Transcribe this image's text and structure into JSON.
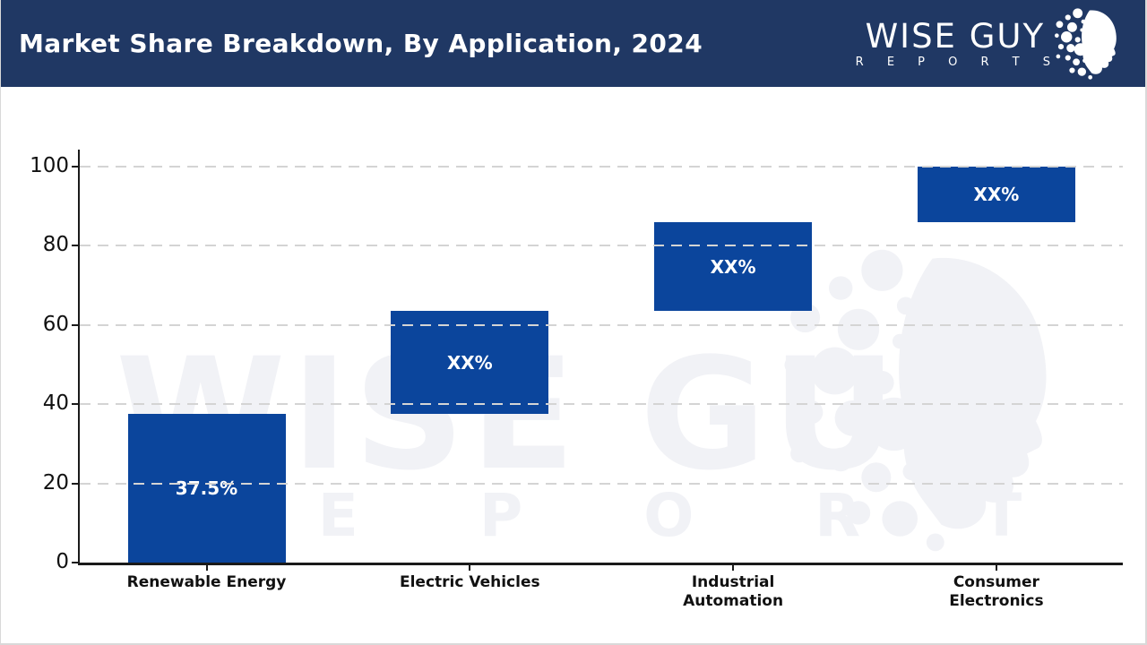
{
  "header": {
    "title": "Market Share Breakdown, By Application, 2024",
    "logo": {
      "name": "WISE GUY",
      "sub": "R E P O R T S"
    }
  },
  "watermark": {
    "line1": "WISE GUY",
    "line2": "R E P O R T S"
  },
  "chart_data": {
    "type": "bar",
    "subtype": "floating-waterfall",
    "title": "Market Share Breakdown, By Application, 2024",
    "categories": [
      "Renewable Energy",
      "Electric Vehicles",
      "Industrial Automation",
      "Consumer Electronics"
    ],
    "category_lines": [
      [
        "Renewable Energy"
      ],
      [
        "Electric Vehicles"
      ],
      [
        "Industrial",
        "Automation"
      ],
      [
        "Consumer",
        "Electronics"
      ]
    ],
    "segments": [
      {
        "category": "Renewable Energy",
        "from": 0,
        "to": 37.5,
        "label": "37.5%"
      },
      {
        "category": "Electric Vehicles",
        "from": 37.5,
        "to": 63.5,
        "label": "XX%"
      },
      {
        "category": "Industrial Automation",
        "from": 63.5,
        "to": 86,
        "label": "XX%"
      },
      {
        "category": "Consumer Electronics",
        "from": 86,
        "to": 100,
        "label": "XX%"
      }
    ],
    "yticks": [
      0,
      20,
      40,
      60,
      80,
      100
    ],
    "ylim": [
      0,
      105
    ],
    "xlabel": "",
    "ylabel": "",
    "grid": "horizontal-dashed",
    "legend": "none"
  },
  "style": {
    "header_bg": "#203864",
    "bar_color": "#0b459c",
    "grid_color": "#d4d4d4",
    "axis_color": "#1a1a1a",
    "watermark_color": "#f1f2f6",
    "bar_label_color": "#ffffff",
    "text_color": "#111111",
    "page_border": "#d9d9d9"
  }
}
